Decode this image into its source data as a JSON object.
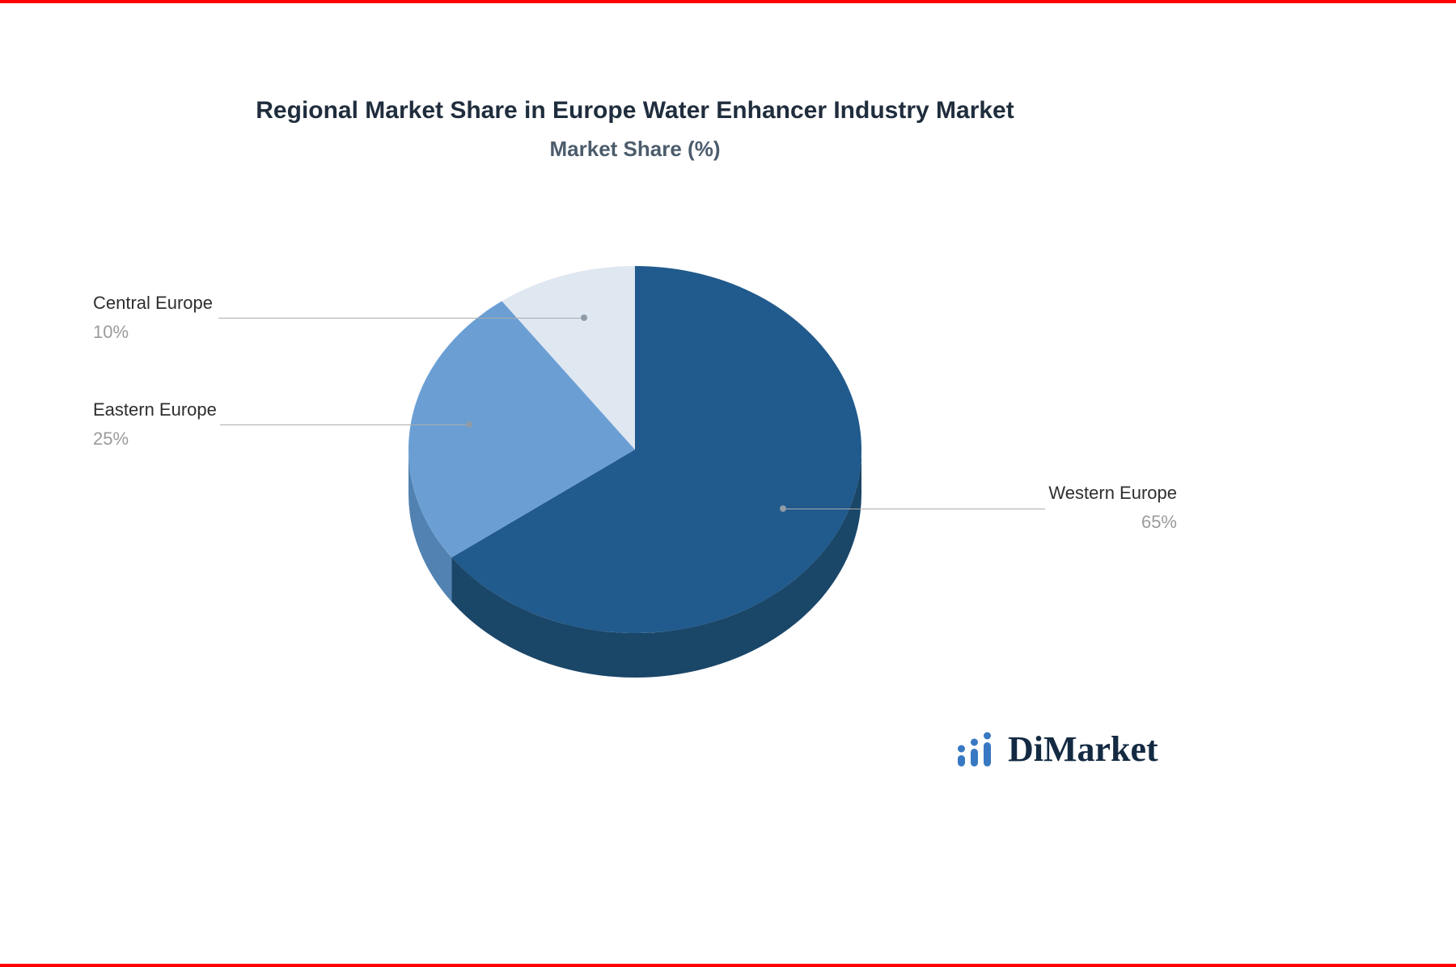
{
  "chart_data": {
    "type": "pie",
    "title": "Regional Market Share in Europe Water Enhancer Industry Market",
    "subtitle": "Market Share (%)",
    "unit": "%",
    "effect_3d": true,
    "direction": "clockwise",
    "start_angle": "12-oclock",
    "legend_position": "callout-labels",
    "categories": [
      "Western Europe",
      "Eastern Europe",
      "Central Europe"
    ],
    "values": [
      65,
      25,
      10
    ],
    "slices": [
      {
        "label": "Western Europe",
        "value": 65,
        "display": "65%",
        "color": "#215A8C",
        "side_color": "#1A4668"
      },
      {
        "label": "Eastern Europe",
        "value": 25,
        "display": "25%",
        "color": "#6B9FD4",
        "side_color": "#5282B2"
      },
      {
        "label": "Central Europe",
        "value": 10,
        "display": "10%",
        "color": "#DFE7F1",
        "side_color": "#B9C7D8"
      }
    ]
  },
  "logo": {
    "text": "DiMarket",
    "icon": "bar-chart-logo-icon",
    "text_color": "#132A42",
    "icon_color": "#3878C2"
  },
  "page": {
    "accent_border_color": "#FE0000",
    "background_color": "#FFFFFF"
  }
}
